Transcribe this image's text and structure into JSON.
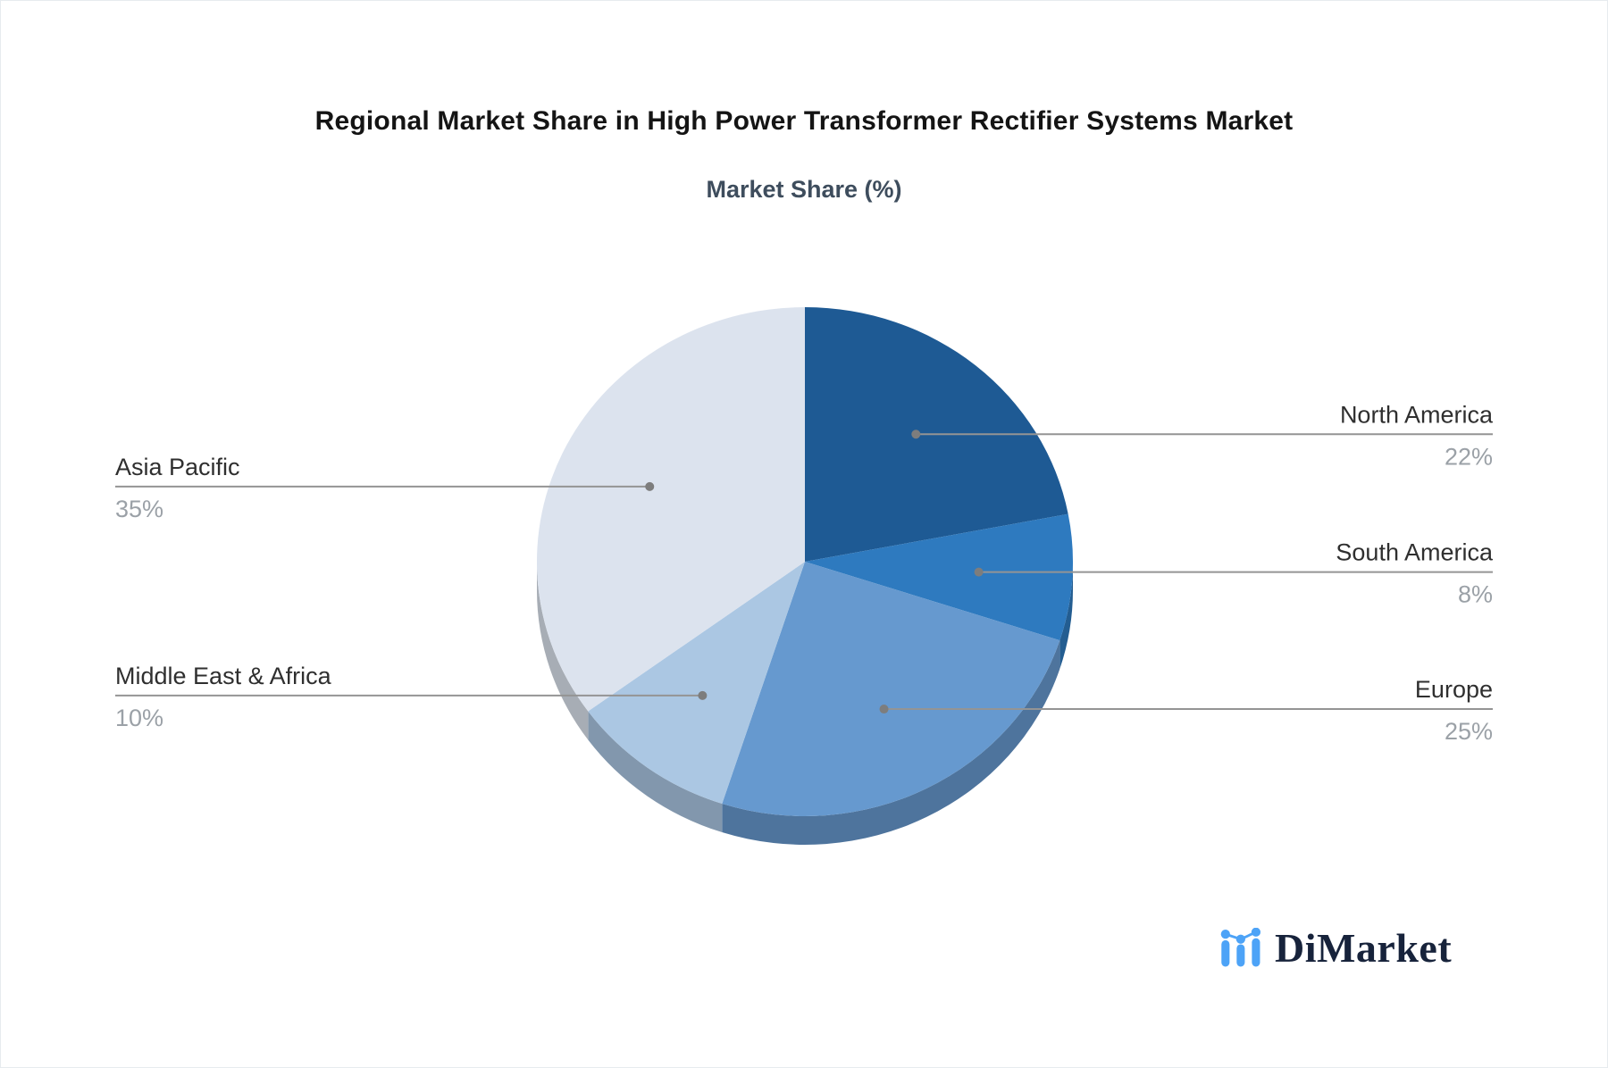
{
  "chart_data": {
    "type": "pie",
    "title": "Regional Market Share in High Power Transformer Rectifier Systems Market",
    "subtitle": "Market Share (%)",
    "unit": "%",
    "style": "3d",
    "direction": "clockwise",
    "start_angle_deg": 0,
    "legend_position": "callout-labels",
    "slices": [
      {
        "label": "North America",
        "value": 22,
        "display": "22%",
        "color": "#1e5a94"
      },
      {
        "label": "South America",
        "value": 8,
        "display": "8%",
        "color": "#2e7abf"
      },
      {
        "label": "Europe",
        "value": 25,
        "display": "25%",
        "color": "#6699cf"
      },
      {
        "label": "Middle East & Africa",
        "value": 10,
        "display": "10%",
        "color": "#abc7e3"
      },
      {
        "label": "Asia Pacific",
        "value": 35,
        "display": "35%",
        "color": "#dce3ee"
      }
    ]
  },
  "branding": {
    "logo_text": "DiMarket",
    "logo_icon": "bar-line-chart-icon",
    "logo_text_color": "#17233b",
    "logo_accent_color": "#4da3f7"
  },
  "colors": {
    "title_text": "#141414",
    "subtitle_text": "#3e4d5d",
    "label_text": "#2f2f2f",
    "percent_text": "#9ba1a7",
    "leader_line": "#949494",
    "leader_dot": "#7d7d7d",
    "page_border": "#e7ebef"
  }
}
